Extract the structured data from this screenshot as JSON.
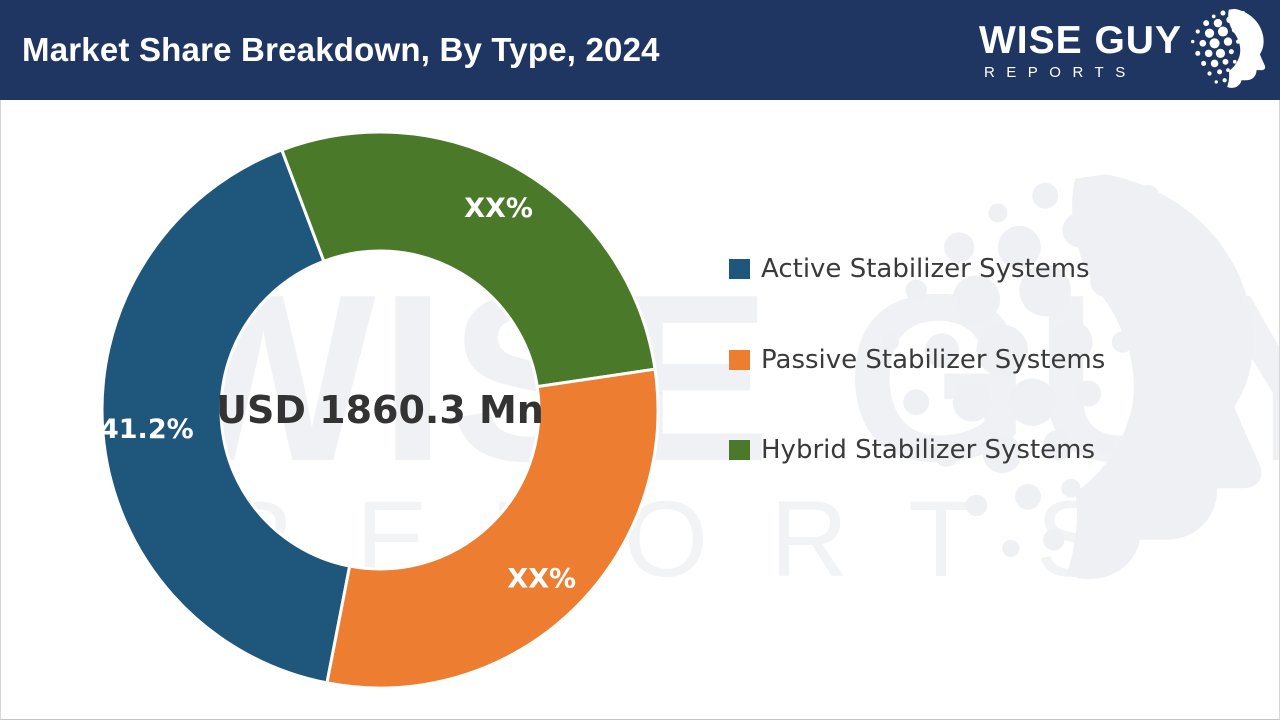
{
  "header": {
    "title": "Market Share Breakdown, By Type, 2024",
    "background_color": "#203662",
    "logo": {
      "line1": "WISE GUY",
      "line2": "REPORTS"
    }
  },
  "chart_data": {
    "type": "pie",
    "subtype": "donut",
    "title": "Market Share Breakdown, By Type, 2024",
    "center_label": "USD 1860.3 Mn",
    "unit": "percent of market share",
    "start_angle_deg": 191,
    "label_color": "#ffffff",
    "gap_color": "#ffffff",
    "segments": [
      {
        "name": "Active Stabilizer Systems",
        "value_pct": 41.2,
        "label": "41.2%",
        "color": "#1F567C",
        "legend_index": 0
      },
      {
        "name": "Hybrid Stabilizer Systems",
        "value_pct": 28.4,
        "label": "XX%",
        "color": "#4A7A29",
        "legend_index": 2
      },
      {
        "name": "Passive Stabilizer Systems",
        "value_pct": 30.4,
        "label": "XX%",
        "color": "#ED7D31",
        "legend_index": 1
      }
    ],
    "legend_position": "right",
    "notes": "Two segment values are masked as XX% in the source image; value_pct for those segments is estimated from arc angles."
  },
  "watermark": {
    "word1": "WISE GUY",
    "word2": "REPORTS",
    "color": "#f0f1f4"
  }
}
